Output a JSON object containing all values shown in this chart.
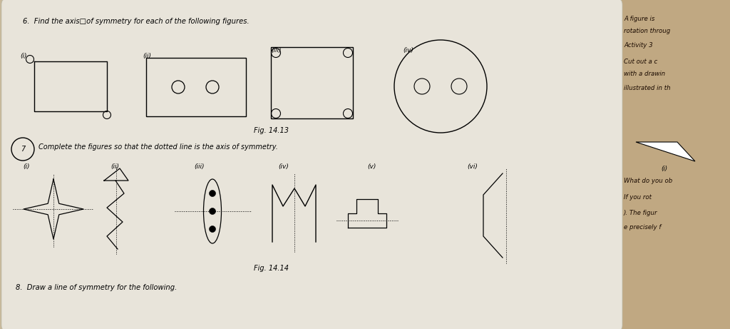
{
  "bg_color": "#c8b89a",
  "page_color": "#e8e4da",
  "title_text": "6.  Find the axis□of symmetry for each of the following figures.",
  "fig1_label": "Fig. 14.13",
  "fig2_label": "Fig. 14.14",
  "q7_text": "Complete the figures so that the dotted line is the axis of symmetry.",
  "q8_text": "8.  Draw a line of symmetry for the following.",
  "right_text_lines": [
    "A figure is",
    "rotation throug",
    "Activity 3",
    "Cut out a c",
    "with a drawin",
    "illustrated in th"
  ],
  "right_text2_lines": [
    "What do you ob",
    "If you rot",
    "). The figur",
    "e precisely f"
  ],
  "right_shape_label": "(i)"
}
